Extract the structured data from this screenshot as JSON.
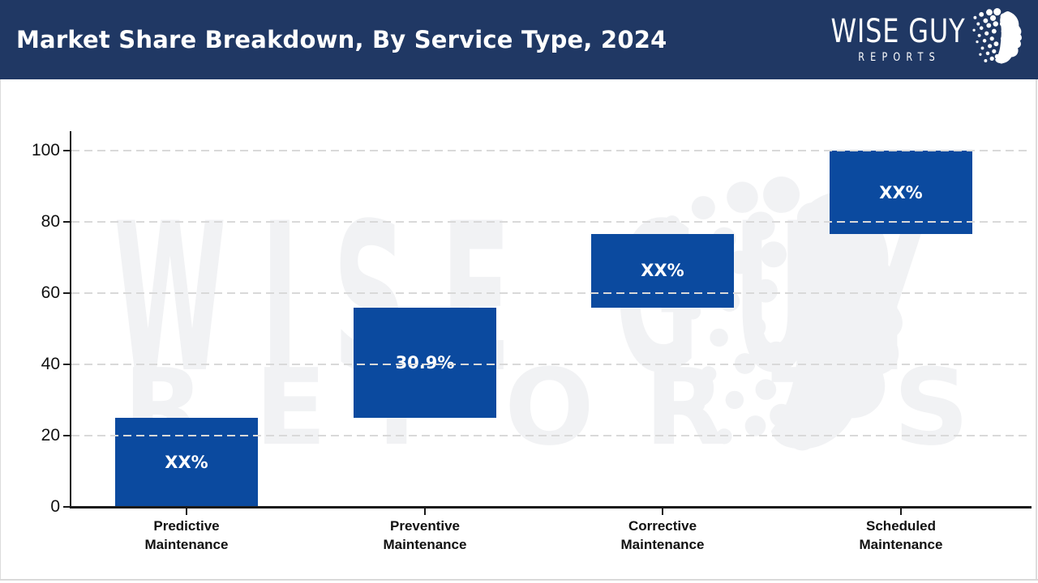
{
  "header": {
    "title": "Market Share Breakdown, By Service Type, 2024",
    "logo": {
      "brand": "WISE GUY",
      "sub": "REPORTS"
    }
  },
  "watermark": {
    "brand": "WISE GUY",
    "sub": "REPORTS"
  },
  "chart_data": {
    "type": "bar",
    "subtype": "waterfall",
    "title": "Market Share Breakdown, By Service Type, 2024",
    "categories": [
      "Predictive\nMaintenance",
      "Preventive\nMaintenance",
      "Corrective\nMaintenance",
      "Scheduled\nMaintenance"
    ],
    "segments": [
      {
        "category": "Predictive Maintenance",
        "start": 0,
        "end": 25.1,
        "value_label": "XX%"
      },
      {
        "category": "Preventive Maintenance",
        "start": 25.1,
        "end": 56.0,
        "value_label": "30.9%",
        "value": 30.9
      },
      {
        "category": "Corrective Maintenance",
        "start": 56.0,
        "end": 76.5,
        "value_label": "XX%"
      },
      {
        "category": "Scheduled Maintenance",
        "start": 76.5,
        "end": 100,
        "value_label": "XX%"
      }
    ],
    "ylim": [
      0,
      100
    ],
    "yticks": [
      0,
      20,
      40,
      60,
      80,
      100
    ],
    "grid": "horizontal dashed",
    "legend": false,
    "xlabel": "",
    "ylabel": ""
  },
  "colors": {
    "header_bg": "#203864",
    "bar": "#0b4a9f",
    "grid": "#d9d9d9",
    "axis": "#1a1a1a",
    "bar_label": "#ffffff",
    "watermark": "#f1f2f4"
  }
}
